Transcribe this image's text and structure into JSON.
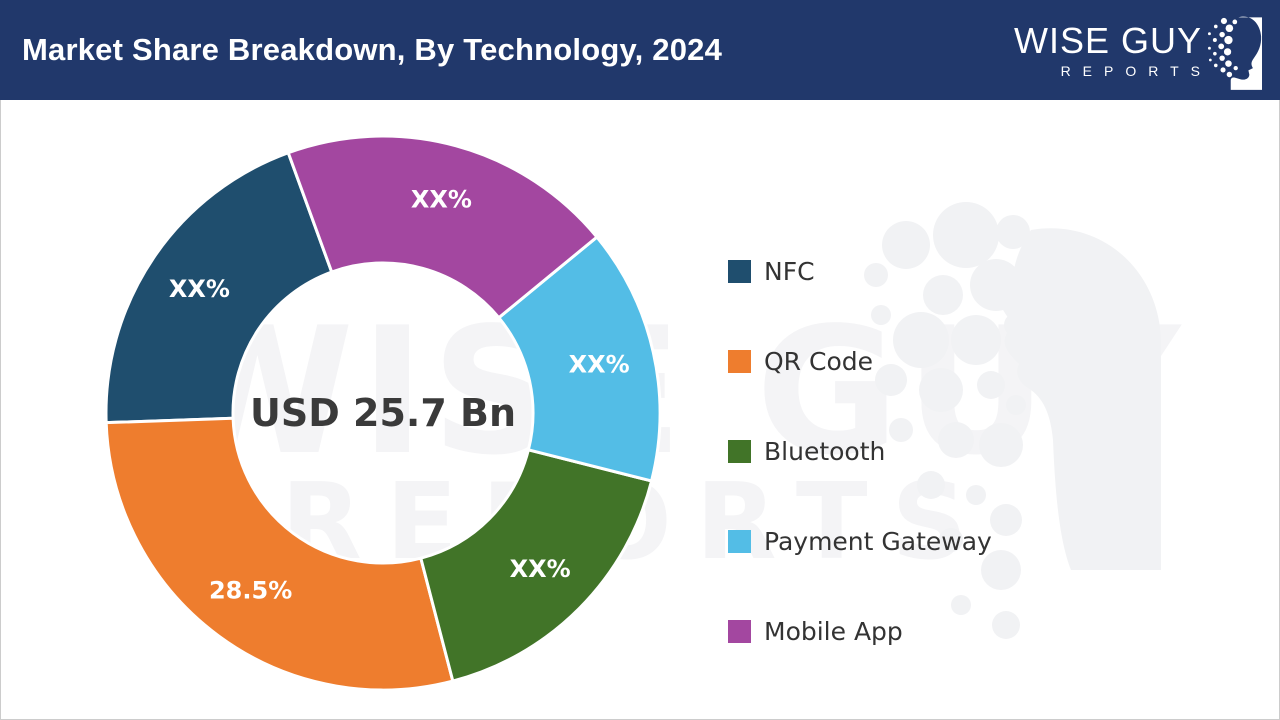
{
  "header": {
    "title": "Market Share Breakdown, By Technology, 2024",
    "bg_color": "#21386B",
    "logo": {
      "wordmark": "WISE GUY",
      "subtext": "REPORTS"
    }
  },
  "chart_data": {
    "type": "pie",
    "subtype": "donut",
    "title": "Market Share Breakdown, By Technology, 2024",
    "center_label": "USD 25.7 Bn",
    "unit": "%",
    "start_angle_deg": 110,
    "direction": "counterclockwise",
    "inner_radius_ratio": 0.54,
    "legend_position": "right",
    "grid": false,
    "segments": [
      {
        "name": "NFC",
        "value": 20.0,
        "label": "XX%",
        "color": "#1F4E6E"
      },
      {
        "name": "QR Code",
        "value": 28.5,
        "label": "28.5%",
        "color": "#EE7D2E"
      },
      {
        "name": "Bluetooth",
        "value": 17.0,
        "label": "XX%",
        "color": "#417428"
      },
      {
        "name": "Payment Gateway",
        "value": 14.9,
        "label": "XX%",
        "color": "#53BDE6"
      },
      {
        "name": "Mobile App",
        "value": 19.6,
        "label": "XX%",
        "color": "#A347A0"
      }
    ]
  },
  "watermark": {
    "line1": "WISE GUY",
    "line2": "REPORTS"
  }
}
